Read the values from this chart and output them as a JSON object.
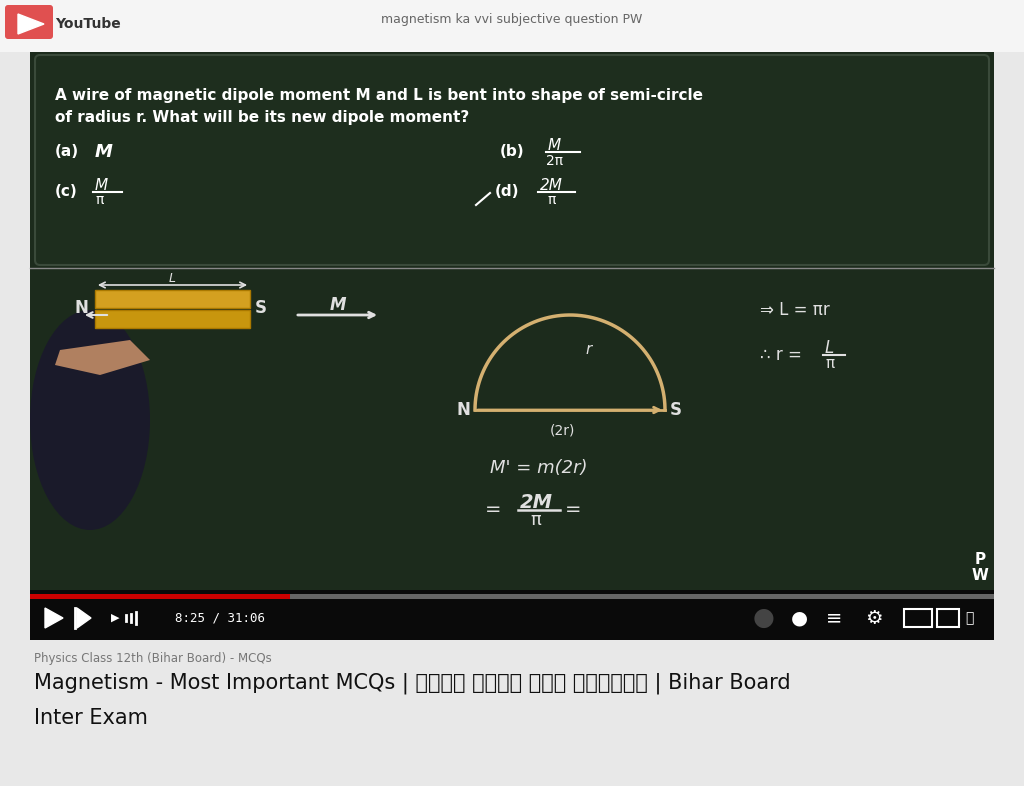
{
  "bg_color": "#e8e8e8",
  "header_bg": "#f5f5f5",
  "video_bg": "#1c2b1c",
  "chalkboard_bg": "#1c2b1c",
  "question_box_bg": "#1a2a1a",
  "question_text": "A wire of magnetic dipole moment M and L is bent into shape of semi-circle\nof radius r. What will be its new dipole moment?",
  "title_bar_text": "magnetism ka vvi subjective question PW",
  "youtube_red": "#e05050",
  "progress_red": "#CC0000",
  "progress_gray": "#666666",
  "time_text": "8:25 / 31:06",
  "bottom_title_line1": "Magnetism - Most Important MCQs | इससे बाहर नही पूछेगा | Bihar Board",
  "bottom_title_line2": "Inter Exam",
  "subtitle_text": "Physics Class 12th (Bihar Board) - MCQs",
  "pw_color": "#ffffff",
  "control_bar_bg": "#111111",
  "chalk_color": "#d4b070",
  "chalk_white": "#e0e0e0",
  "separator_color": "#888888"
}
